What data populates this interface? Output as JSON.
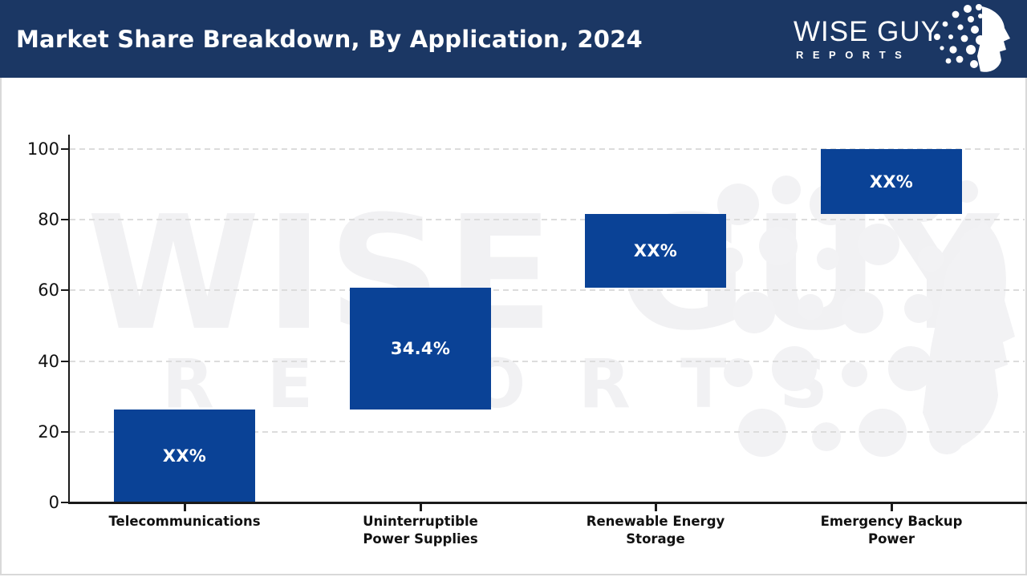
{
  "header": {
    "title": "Market Share Breakdown, By Application, 2024",
    "bg_color": "#1b3764",
    "logo": {
      "line1": "WISE GUY",
      "line2": "REPORTS"
    }
  },
  "watermark": {
    "line1": "WISE GUY",
    "line2": "REPORTS"
  },
  "colors": {
    "bar_blue": "#0a4296",
    "header_navy": "#1b3764",
    "gridline_gray": "#dcdcdc",
    "watermark_gray": "#f1f1f3",
    "axis_black": "#1a1a1a",
    "frame_gray": "#d9d9d9"
  },
  "chart_data": {
    "type": "bar",
    "subtype": "waterfall",
    "title": "Market Share Breakdown, By Application, 2024",
    "xlabel": "",
    "ylabel": "",
    "ylim": [
      0,
      100
    ],
    "yticks": [
      0,
      20,
      40,
      60,
      80,
      100
    ],
    "grid": "horizontal-dashed",
    "legend": "none",
    "bar_color": "#0a4296",
    "categories": [
      "Telecommunications",
      "Uninterruptible Power Supplies",
      "Renewable Energy Storage",
      "Emergency Backup Power"
    ],
    "category_label_lines": [
      [
        "Telecommunications"
      ],
      [
        "Uninterruptible",
        "Power Supplies"
      ],
      [
        "Renewable Energy",
        "Storage"
      ],
      [
        "Emergency Backup",
        "Power"
      ]
    ],
    "segments": [
      {
        "category": "Telecommunications",
        "base": 0,
        "top": 26.3,
        "label": "XX%"
      },
      {
        "category": "Uninterruptible Power Supplies",
        "base": 26.3,
        "top": 60.7,
        "label": "34.4%",
        "value": 34.4
      },
      {
        "category": "Renewable Energy Storage",
        "base": 60.7,
        "top": 81.6,
        "label": "XX%"
      },
      {
        "category": "Emergency Backup Power",
        "base": 81.6,
        "top": 100,
        "label": "XX%"
      }
    ]
  }
}
